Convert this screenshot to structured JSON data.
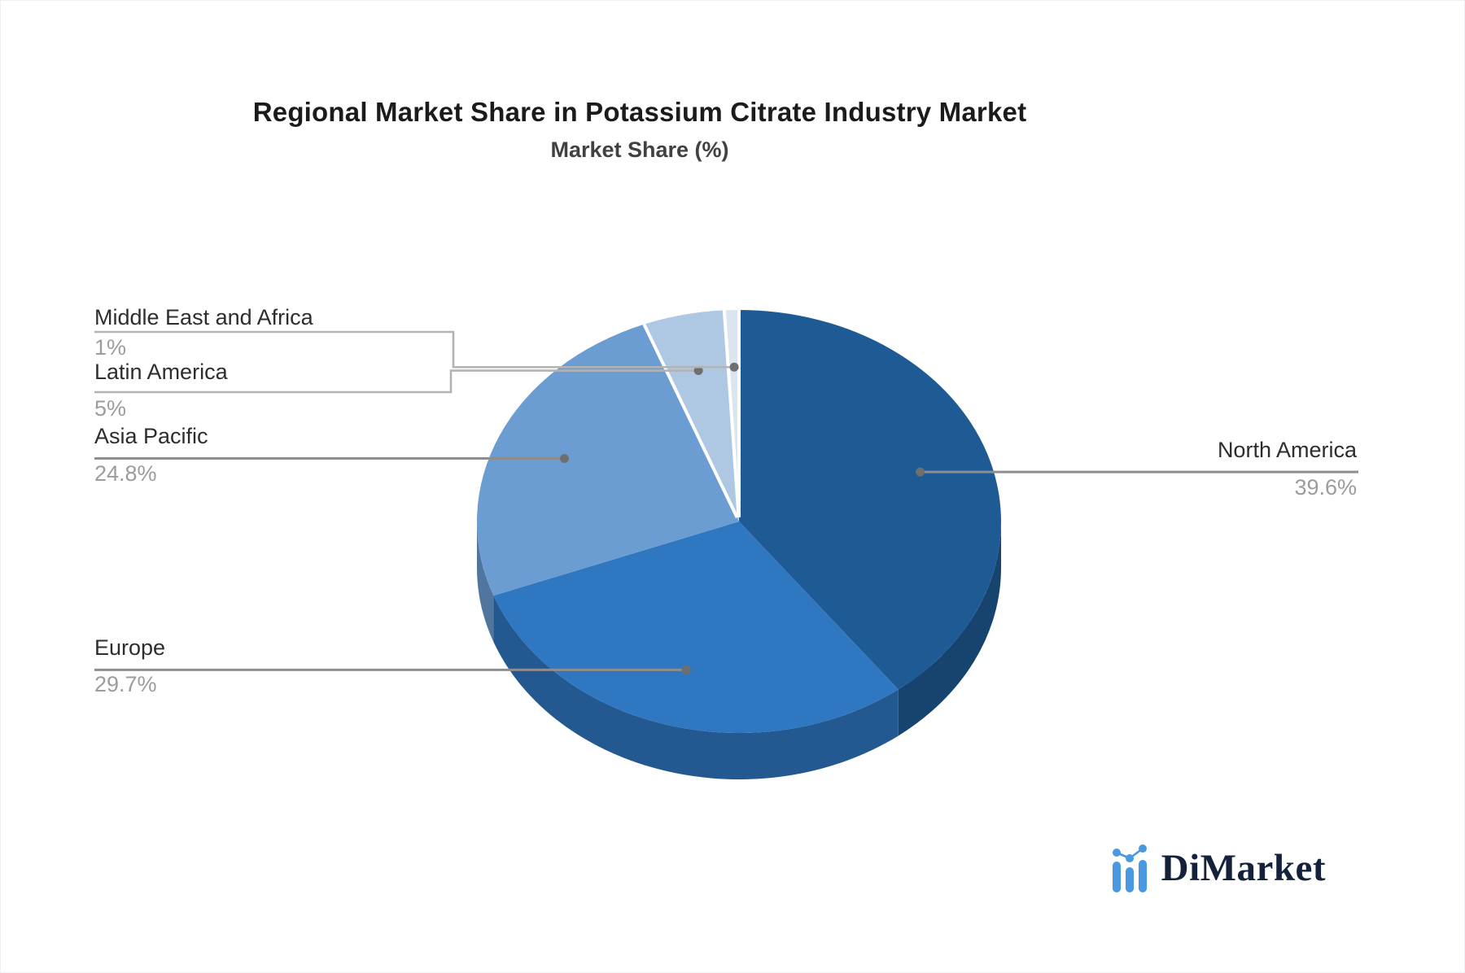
{
  "chart_data": {
    "type": "pie",
    "title": "Regional Market Share in Potassium Citrate Industry Market",
    "subtitle": "Market Share (%)",
    "unit": "%",
    "style": "3d-pie",
    "legend_position": "callout-labels",
    "slices": [
      {
        "label": "North America",
        "value": 39.6,
        "display": "39.6%",
        "color": "#1e5a94"
      },
      {
        "label": "Europe",
        "value": 29.7,
        "display": "29.7%",
        "color": "#2f77c0"
      },
      {
        "label": "Asia Pacific",
        "value": 24.8,
        "display": "24.8%",
        "color": "#6b9cd2"
      },
      {
        "label": "Latin America",
        "value": 5,
        "display": "5%",
        "color": "#aec8e3"
      },
      {
        "label": "Middle East and Africa",
        "value": 1,
        "display": "1%",
        "color": "#dbe5f0"
      }
    ],
    "colors": {
      "label_text": "#2d2d2d",
      "value_text": "#9c9c9c",
      "leader_line": "#8e8e8e",
      "leader_elbow": "#b3b3b3",
      "leader_dot": "#6f6f6f"
    }
  },
  "branding": {
    "logo_text": "DiMarket",
    "logo_icon": "bar-chart-with-trend-dots-icon",
    "logo_icon_color": "#4a97e2"
  }
}
